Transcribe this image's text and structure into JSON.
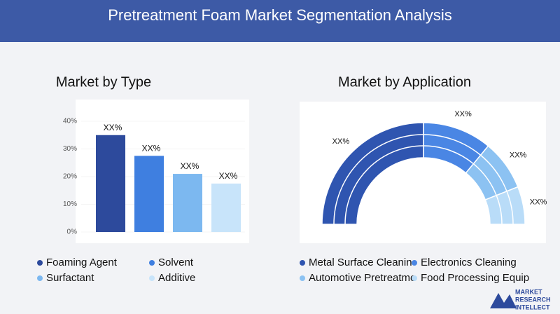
{
  "title": "Pretreatment Foam Market Segmentation Analysis",
  "logo": [
    "MARKET",
    "RESEARCH",
    "INTELLECT"
  ],
  "chart_data": [
    {
      "type": "bar",
      "title": "Market by Type",
      "categories": [
        "Foaming Agent",
        "Solvent",
        "Surfactant",
        "Additive"
      ],
      "values": [
        35,
        27.5,
        21,
        17.5
      ],
      "value_labels": [
        "XX%",
        "XX%",
        "XX%",
        "XX%"
      ],
      "colors": [
        "#2d4a9c",
        "#3f7fe0",
        "#7cb8f0",
        "#c8e4fa"
      ],
      "ylim": [
        0,
        40
      ],
      "yticks": [
        {
          "value": 0,
          "label": "0%"
        },
        {
          "value": 10,
          "label": "10%"
        },
        {
          "value": 20,
          "label": "20%"
        },
        {
          "value": 30,
          "label": "30%"
        },
        {
          "value": 40,
          "label": "40%"
        }
      ]
    },
    {
      "type": "pie",
      "title": "Market by Application",
      "categories": [
        "Metal Surface Cleanin",
        "Electronics Cleaning",
        "Automotive Pretreatme",
        "Food Processing Equip"
      ],
      "values": [
        50,
        22,
        16,
        12
      ],
      "value_labels": [
        "XX%",
        "XX%",
        "XX%",
        "XX%"
      ],
      "colors": [
        "#2f55b0",
        "#4a86e4",
        "#8cc2f2",
        "#b9dcf8"
      ]
    }
  ]
}
